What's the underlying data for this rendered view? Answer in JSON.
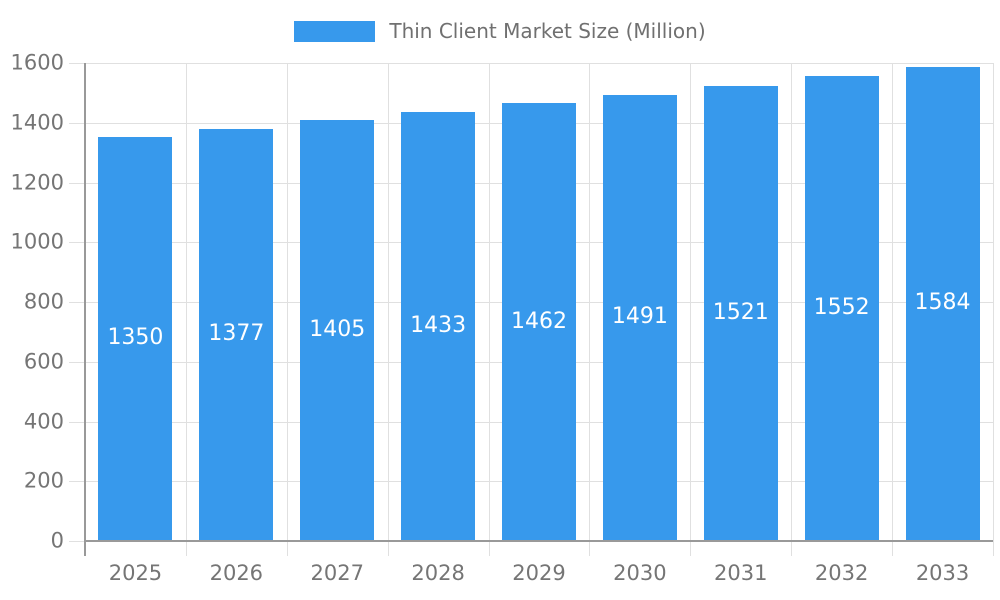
{
  "chart_data": {
    "type": "bar",
    "title": "Thin Client Market Size (Million)",
    "legend": {
      "label": "Thin Client Market Size (Million)",
      "position": "top-center"
    },
    "categories": [
      "2025",
      "2026",
      "2027",
      "2028",
      "2029",
      "2030",
      "2031",
      "2032",
      "2033"
    ],
    "values": [
      1350,
      1377,
      1405,
      1433,
      1462,
      1491,
      1521,
      1552,
      1584
    ],
    "xlabel": "",
    "ylabel": "",
    "ylim": [
      0,
      1600
    ],
    "yticks": [
      0,
      200,
      400,
      600,
      800,
      1000,
      1200,
      1400,
      1600
    ],
    "grid": true,
    "value_label_position": "inside-center",
    "colors": {
      "bar": "#3799EC",
      "value_label": "#FFFFFF",
      "gridline": "#E0E0E0",
      "axis_line": "#999999",
      "tick_label": "#757575",
      "legend_text": "#707070",
      "background": "#FFFFFF"
    }
  }
}
